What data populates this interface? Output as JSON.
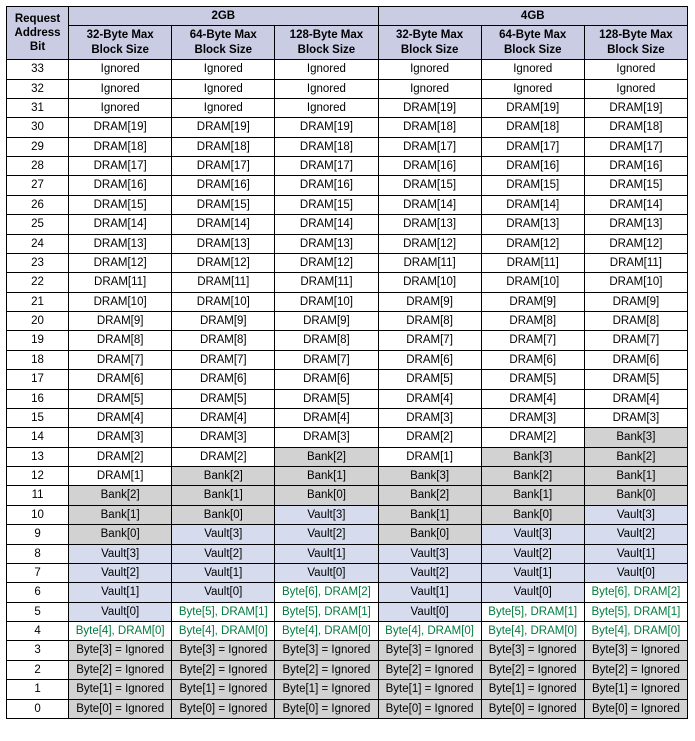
{
  "table": {
    "headers": {
      "bit": "Request<br>Address<br>Bit",
      "group2": "2GB",
      "group4": "4GB",
      "sub32": "32-Byte Max<br>Block Size",
      "sub64": "64-Byte Max<br>Block Size",
      "sub128": "128-Byte Max<br>Block Size"
    },
    "colors": {
      "header_bg": "#c9cce3",
      "shade_grey": "#d2d2d2",
      "shade_blue": "#d6dbed",
      "text_green": "#007a3d",
      "border": "#000000"
    },
    "rows": [
      {
        "bit": "33",
        "c": [
          {
            "v": "Ignored"
          },
          {
            "v": "Ignored"
          },
          {
            "v": "Ignored"
          },
          {
            "v": "Ignored"
          },
          {
            "v": "Ignored"
          },
          {
            "v": "Ignored"
          }
        ]
      },
      {
        "bit": "32",
        "c": [
          {
            "v": "Ignored"
          },
          {
            "v": "Ignored"
          },
          {
            "v": "Ignored"
          },
          {
            "v": "Ignored"
          },
          {
            "v": "Ignored"
          },
          {
            "v": "Ignored"
          }
        ]
      },
      {
        "bit": "31",
        "c": [
          {
            "v": "Ignored"
          },
          {
            "v": "Ignored"
          },
          {
            "v": "Ignored"
          },
          {
            "v": "DRAM[19]"
          },
          {
            "v": "DRAM[19]"
          },
          {
            "v": "DRAM[19]"
          }
        ]
      },
      {
        "bit": "30",
        "c": [
          {
            "v": "DRAM[19]"
          },
          {
            "v": "DRAM[19]"
          },
          {
            "v": "DRAM[19]"
          },
          {
            "v": "DRAM[18]"
          },
          {
            "v": "DRAM[18]"
          },
          {
            "v": "DRAM[18]"
          }
        ]
      },
      {
        "bit": "29",
        "c": [
          {
            "v": "DRAM[18]"
          },
          {
            "v": "DRAM[18]"
          },
          {
            "v": "DRAM[18]"
          },
          {
            "v": "DRAM[17]"
          },
          {
            "v": "DRAM[17]"
          },
          {
            "v": "DRAM[17]"
          }
        ]
      },
      {
        "bit": "28",
        "c": [
          {
            "v": "DRAM[17]"
          },
          {
            "v": "DRAM[17]"
          },
          {
            "v": "DRAM[17]"
          },
          {
            "v": "DRAM[16]"
          },
          {
            "v": "DRAM[16]"
          },
          {
            "v": "DRAM[16]"
          }
        ]
      },
      {
        "bit": "27",
        "c": [
          {
            "v": "DRAM[16]"
          },
          {
            "v": "DRAM[16]"
          },
          {
            "v": "DRAM[16]"
          },
          {
            "v": "DRAM[15]"
          },
          {
            "v": "DRAM[15]"
          },
          {
            "v": "DRAM[15]"
          }
        ]
      },
      {
        "bit": "26",
        "c": [
          {
            "v": "DRAM[15]"
          },
          {
            "v": "DRAM[15]"
          },
          {
            "v": "DRAM[15]"
          },
          {
            "v": "DRAM[14]"
          },
          {
            "v": "DRAM[14]"
          },
          {
            "v": "DRAM[14]"
          }
        ]
      },
      {
        "bit": "25",
        "c": [
          {
            "v": "DRAM[14]"
          },
          {
            "v": "DRAM[14]"
          },
          {
            "v": "DRAM[14]"
          },
          {
            "v": "DRAM[13]"
          },
          {
            "v": "DRAM[13]"
          },
          {
            "v": "DRAM[13]"
          }
        ]
      },
      {
        "bit": "24",
        "c": [
          {
            "v": "DRAM[13]"
          },
          {
            "v": "DRAM[13]"
          },
          {
            "v": "DRAM[13]"
          },
          {
            "v": "DRAM[12]"
          },
          {
            "v": "DRAM[12]"
          },
          {
            "v": "DRAM[12]"
          }
        ]
      },
      {
        "bit": "23",
        "c": [
          {
            "v": "DRAM[12]"
          },
          {
            "v": "DRAM[12]"
          },
          {
            "v": "DRAM[12]"
          },
          {
            "v": "DRAM[11]"
          },
          {
            "v": "DRAM[11]"
          },
          {
            "v": "DRAM[11]"
          }
        ]
      },
      {
        "bit": "22",
        "c": [
          {
            "v": "DRAM[11]"
          },
          {
            "v": "DRAM[11]"
          },
          {
            "v": "DRAM[11]"
          },
          {
            "v": "DRAM[10]"
          },
          {
            "v": "DRAM[10]"
          },
          {
            "v": "DRAM[10]"
          }
        ]
      },
      {
        "bit": "21",
        "c": [
          {
            "v": "DRAM[10]"
          },
          {
            "v": "DRAM[10]"
          },
          {
            "v": "DRAM[10]"
          },
          {
            "v": "DRAM[9]"
          },
          {
            "v": "DRAM[9]"
          },
          {
            "v": "DRAM[9]"
          }
        ]
      },
      {
        "bit": "20",
        "c": [
          {
            "v": "DRAM[9]"
          },
          {
            "v": "DRAM[9]"
          },
          {
            "v": "DRAM[9]"
          },
          {
            "v": "DRAM[8]"
          },
          {
            "v": "DRAM[8]"
          },
          {
            "v": "DRAM[8]"
          }
        ]
      },
      {
        "bit": "19",
        "c": [
          {
            "v": "DRAM[8]"
          },
          {
            "v": "DRAM[8]"
          },
          {
            "v": "DRAM[8]"
          },
          {
            "v": "DRAM[7]"
          },
          {
            "v": "DRAM[7]"
          },
          {
            "v": "DRAM[7]"
          }
        ]
      },
      {
        "bit": "18",
        "c": [
          {
            "v": "DRAM[7]"
          },
          {
            "v": "DRAM[7]"
          },
          {
            "v": "DRAM[7]"
          },
          {
            "v": "DRAM[6]"
          },
          {
            "v": "DRAM[6]"
          },
          {
            "v": "DRAM[6]"
          }
        ]
      },
      {
        "bit": "17",
        "c": [
          {
            "v": "DRAM[6]"
          },
          {
            "v": "DRAM[6]"
          },
          {
            "v": "DRAM[6]"
          },
          {
            "v": "DRAM[5]"
          },
          {
            "v": "DRAM[5]"
          },
          {
            "v": "DRAM[5]"
          }
        ]
      },
      {
        "bit": "16",
        "c": [
          {
            "v": "DRAM[5]"
          },
          {
            "v": "DRAM[5]"
          },
          {
            "v": "DRAM[5]"
          },
          {
            "v": "DRAM[4]"
          },
          {
            "v": "DRAM[4]"
          },
          {
            "v": "DRAM[4]"
          }
        ]
      },
      {
        "bit": "15",
        "c": [
          {
            "v": "DRAM[4]"
          },
          {
            "v": "DRAM[4]"
          },
          {
            "v": "DRAM[4]"
          },
          {
            "v": "DRAM[3]"
          },
          {
            "v": "DRAM[3]"
          },
          {
            "v": "DRAM[3]"
          }
        ]
      },
      {
        "bit": "14",
        "c": [
          {
            "v": "DRAM[3]"
          },
          {
            "v": "DRAM[3]"
          },
          {
            "v": "DRAM[3]"
          },
          {
            "v": "DRAM[2]"
          },
          {
            "v": "DRAM[2]"
          },
          {
            "v": "Bank[3]",
            "s": "grey"
          }
        ]
      },
      {
        "bit": "13",
        "c": [
          {
            "v": "DRAM[2]"
          },
          {
            "v": "DRAM[2]"
          },
          {
            "v": "Bank[2]",
            "s": "grey"
          },
          {
            "v": "DRAM[1]"
          },
          {
            "v": "Bank[3]",
            "s": "grey"
          },
          {
            "v": "Bank[2]",
            "s": "grey"
          }
        ]
      },
      {
        "bit": "12",
        "c": [
          {
            "v": "DRAM[1]"
          },
          {
            "v": "Bank[2]",
            "s": "grey"
          },
          {
            "v": "Bank[1]",
            "s": "grey"
          },
          {
            "v": "Bank[3]",
            "s": "grey"
          },
          {
            "v": "Bank[2]",
            "s": "grey"
          },
          {
            "v": "Bank[1]",
            "s": "grey"
          }
        ]
      },
      {
        "bit": "11",
        "c": [
          {
            "v": "Bank[2]",
            "s": "grey"
          },
          {
            "v": "Bank[1]",
            "s": "grey"
          },
          {
            "v": "Bank[0]",
            "s": "grey"
          },
          {
            "v": "Bank[2]",
            "s": "grey"
          },
          {
            "v": "Bank[1]",
            "s": "grey"
          },
          {
            "v": "Bank[0]",
            "s": "grey"
          }
        ]
      },
      {
        "bit": "10",
        "c": [
          {
            "v": "Bank[1]",
            "s": "grey"
          },
          {
            "v": "Bank[0]",
            "s": "grey"
          },
          {
            "v": "Vault[3]",
            "s": "blue"
          },
          {
            "v": "Bank[1]",
            "s": "grey"
          },
          {
            "v": "Bank[0]",
            "s": "grey"
          },
          {
            "v": "Vault[3]",
            "s": "blue"
          }
        ]
      },
      {
        "bit": "9",
        "c": [
          {
            "v": "Bank[0]",
            "s": "grey"
          },
          {
            "v": "Vault[3]",
            "s": "blue"
          },
          {
            "v": "Vault[2]",
            "s": "blue"
          },
          {
            "v": "Bank[0]",
            "s": "grey"
          },
          {
            "v": "Vault[3]",
            "s": "blue"
          },
          {
            "v": "Vault[2]",
            "s": "blue"
          }
        ]
      },
      {
        "bit": "8",
        "c": [
          {
            "v": "Vault[3]",
            "s": "blue"
          },
          {
            "v": "Vault[2]",
            "s": "blue"
          },
          {
            "v": "Vault[1]",
            "s": "blue"
          },
          {
            "v": "Vault[3]",
            "s": "blue"
          },
          {
            "v": "Vault[2]",
            "s": "blue"
          },
          {
            "v": "Vault[1]",
            "s": "blue"
          }
        ]
      },
      {
        "bit": "7",
        "c": [
          {
            "v": "Vault[2]",
            "s": "blue"
          },
          {
            "v": "Vault[1]",
            "s": "blue"
          },
          {
            "v": "Vault[0]",
            "s": "blue"
          },
          {
            "v": "Vault[2]",
            "s": "blue"
          },
          {
            "v": "Vault[1]",
            "s": "blue"
          },
          {
            "v": "Vault[0]",
            "s": "blue"
          }
        ]
      },
      {
        "bit": "6",
        "c": [
          {
            "v": "Vault[1]",
            "s": "blue"
          },
          {
            "v": "Vault[0]",
            "s": "blue"
          },
          {
            "v": "Byte[6], DRAM[2]",
            "g": true
          },
          {
            "v": "Vault[1]",
            "s": "blue"
          },
          {
            "v": "Vault[0]",
            "s": "blue"
          },
          {
            "v": "Byte[6], DRAM[2]",
            "g": true
          }
        ]
      },
      {
        "bit": "5",
        "c": [
          {
            "v": "Vault[0]",
            "s": "blue"
          },
          {
            "v": "Byte[5], DRAM[1]",
            "g": true
          },
          {
            "v": "Byte[5], DRAM[1]",
            "g": true
          },
          {
            "v": "Vault[0]",
            "s": "blue"
          },
          {
            "v": "Byte[5], DRAM[1]",
            "g": true
          },
          {
            "v": "Byte[5], DRAM[1]",
            "g": true
          }
        ]
      },
      {
        "bit": "4",
        "c": [
          {
            "v": "Byte[4], DRAM[0]",
            "g": true
          },
          {
            "v": "Byte[4], DRAM[0]",
            "g": true
          },
          {
            "v": "Byte[4], DRAM[0]",
            "g": true
          },
          {
            "v": "Byte[4], DRAM[0]",
            "g": true
          },
          {
            "v": "Byte[4], DRAM[0]",
            "g": true
          },
          {
            "v": "Byte[4], DRAM[0]",
            "g": true
          }
        ]
      },
      {
        "bit": "3",
        "c": [
          {
            "v": "Byte[3] = Ignored",
            "s": "grey"
          },
          {
            "v": "Byte[3] = Ignored",
            "s": "grey"
          },
          {
            "v": "Byte[3] = Ignored",
            "s": "grey"
          },
          {
            "v": "Byte[3] = Ignored",
            "s": "grey"
          },
          {
            "v": "Byte[3] = Ignored",
            "s": "grey"
          },
          {
            "v": "Byte[3] = Ignored",
            "s": "grey"
          }
        ]
      },
      {
        "bit": "2",
        "c": [
          {
            "v": "Byte[2] = Ignored",
            "s": "grey"
          },
          {
            "v": "Byte[2] = Ignored",
            "s": "grey"
          },
          {
            "v": "Byte[2] = Ignored",
            "s": "grey"
          },
          {
            "v": "Byte[2] = Ignored",
            "s": "grey"
          },
          {
            "v": "Byte[2] = Ignored",
            "s": "grey"
          },
          {
            "v": "Byte[2] = Ignored",
            "s": "grey"
          }
        ]
      },
      {
        "bit": "1",
        "c": [
          {
            "v": "Byte[1] = Ignored",
            "s": "grey"
          },
          {
            "v": "Byte[1] = Ignored",
            "s": "grey"
          },
          {
            "v": "Byte[1] = Ignored",
            "s": "grey"
          },
          {
            "v": "Byte[1] = Ignored",
            "s": "grey"
          },
          {
            "v": "Byte[1] = Ignored",
            "s": "grey"
          },
          {
            "v": "Byte[1] = Ignored",
            "s": "grey"
          }
        ]
      },
      {
        "bit": "0",
        "c": [
          {
            "v": "Byte[0] = Ignored",
            "s": "grey"
          },
          {
            "v": "Byte[0] = Ignored",
            "s": "grey"
          },
          {
            "v": "Byte[0] = Ignored",
            "s": "grey"
          },
          {
            "v": "Byte[0] = Ignored",
            "s": "grey"
          },
          {
            "v": "Byte[0] = Ignored",
            "s": "grey"
          },
          {
            "v": "Byte[0] = Ignored",
            "s": "grey"
          }
        ]
      }
    ]
  }
}
